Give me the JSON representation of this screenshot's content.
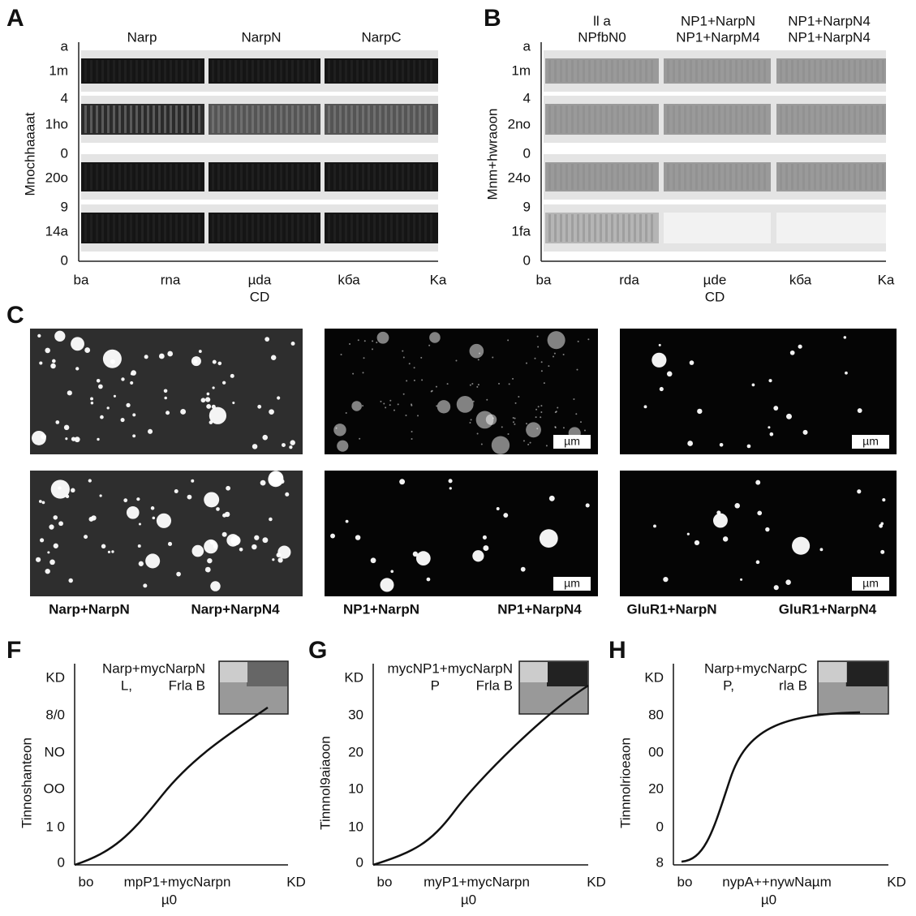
{
  "panels": {
    "A": {
      "letter": "A",
      "columns": [
        "Narp",
        "NarpN",
        "NarpC"
      ],
      "y_label": "Mnochhaaaat",
      "y_ticks": [
        "a",
        "1m",
        "4",
        "1ho",
        "0",
        "20o",
        "9",
        "14a",
        "0"
      ],
      "x_ticks": [
        "ba",
        "rna",
        "µda",
        "kба",
        "Ka"
      ],
      "x_label": "CD"
    },
    "B": {
      "letter": "B",
      "columns": [
        [
          "ll a",
          "NPfbN0"
        ],
        [
          "NP1+NarpN",
          "NP1+NarpM4"
        ],
        [
          "NP1+NarpN4",
          "NP1+NarpN4"
        ]
      ],
      "y_label": "Mnm+hwraoon",
      "y_ticks": [
        "a",
        "1m",
        "4",
        "2no",
        "0",
        "24o",
        "9",
        "1fa",
        "0"
      ],
      "x_ticks": [
        "ba",
        "rda",
        "µde",
        "kба",
        "Ka"
      ],
      "x_label": "CD"
    },
    "C": {
      "letter": "C",
      "scale_labels": [
        "µm",
        "µm",
        "µm",
        "µm"
      ],
      "labels": [
        "Narp+NarpN",
        "Narp+NarpN4",
        "NP1+NarpN",
        "NP1+NarpN4",
        "GluR1+NarpN",
        "GluR1+NarpN4"
      ]
    },
    "F": {
      "letter": "F",
      "title": "Narp+mycNarpN",
      "subtitle": [
        "L,",
        "Frla B"
      ],
      "y_label": "Tinnoshanteon",
      "y_ticks": [
        "KD",
        "8/0",
        "NO",
        "OO",
        "1 0",
        "0"
      ],
      "x_ticks": [
        "bo",
        "mpP1+mycNarpn",
        "KD"
      ],
      "x_label": "µ0"
    },
    "G": {
      "letter": "G",
      "title": "mycNP1+mycNarpN",
      "subtitle": [
        "P",
        "Frla B"
      ],
      "y_label": "Tinnnol9aiaoon",
      "y_ticks": [
        "KD",
        "30",
        "20",
        "10",
        "10",
        "0"
      ],
      "x_ticks": [
        "bo",
        "myP1+mycNarpn",
        "KD"
      ],
      "x_label": "µ0"
    },
    "H": {
      "letter": "H",
      "title": "Narp+mycNarpC",
      "subtitle": [
        "P,",
        "rla B"
      ],
      "y_label": "Tinnnolrioeaon",
      "y_ticks": [
        "KD",
        "80",
        "00",
        "20",
        "0",
        "8"
      ],
      "x_ticks": [
        "bo",
        "nypA++nywNaµm",
        "KD"
      ],
      "x_label": "µ0"
    }
  }
}
